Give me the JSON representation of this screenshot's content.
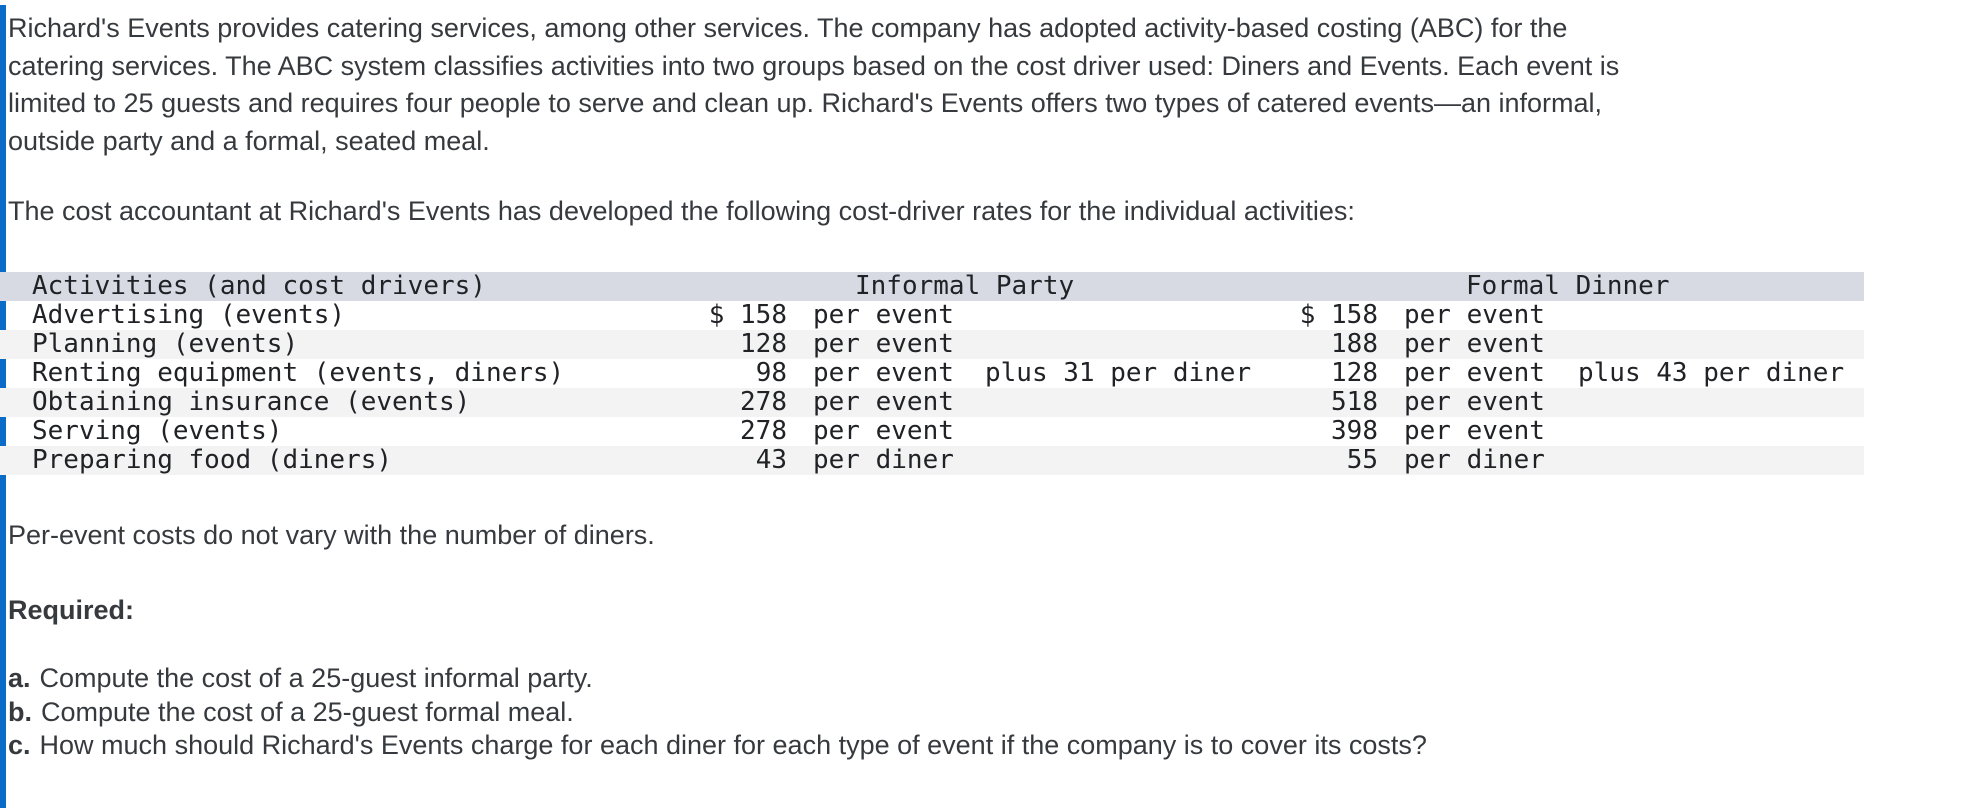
{
  "intro": {
    "lines": [
      "Richard's Events provides catering services, among other services. The company has adopted activity-based costing (ABC) for the",
      "catering services. The ABC system classifies activities into two groups based on the cost driver used: Diners and Events. Each event is",
      "limited to 25 guests and requires four people to serve and clean up. Richard's Events offers two types of catered events—an informal,",
      "outside party and a formal, seated meal."
    ]
  },
  "cost_driver_intro": "The cost accountant at Richard's Events has developed the following cost-driver rates for the individual activities:",
  "table": {
    "headers": {
      "activities": "Activities (and cost drivers)",
      "informal": "Informal Party",
      "formal": "Formal Dinner"
    },
    "rows": [
      {
        "activity": "Advertising (events)",
        "informal_rate": "$ 158",
        "informal_unit": "per event",
        "informal_extra": "",
        "formal_rate": "$ 158",
        "formal_unit": "per event",
        "formal_extra": ""
      },
      {
        "activity": "Planning (events)",
        "informal_rate": "128",
        "informal_unit": "per event",
        "informal_extra": "",
        "formal_rate": "188",
        "formal_unit": "per event",
        "formal_extra": ""
      },
      {
        "activity": "Renting equipment (events, diners)",
        "informal_rate": "98",
        "informal_unit": "per event",
        "informal_extra": "plus 31 per diner",
        "formal_rate": "128",
        "formal_unit": "per event",
        "formal_extra": "plus 43 per diner"
      },
      {
        "activity": "Obtaining insurance (events)",
        "informal_rate": "278",
        "informal_unit": "per event",
        "informal_extra": "",
        "formal_rate": "518",
        "formal_unit": "per event",
        "formal_extra": ""
      },
      {
        "activity": "Serving (events)",
        "informal_rate": "278",
        "informal_unit": "per event",
        "informal_extra": "",
        "formal_rate": "398",
        "formal_unit": "per event",
        "formal_extra": ""
      },
      {
        "activity": "Preparing food (diners)",
        "informal_rate": "43",
        "informal_unit": "per diner",
        "informal_extra": "",
        "formal_rate": "55",
        "formal_unit": "per diner",
        "formal_extra": ""
      }
    ]
  },
  "note": "Per-event costs do not vary with the number of diners.",
  "required_label": "Required:",
  "questions": [
    {
      "label": "a.",
      "text": "Compute the cost of a 25-guest informal party."
    },
    {
      "label": "b.",
      "text": "Compute the cost of a 25-guest formal meal."
    },
    {
      "label": "c.",
      "text": "How much should Richard's Events charge for each diner for each type of event if the company is to cover its costs?"
    }
  ],
  "colors": {
    "accent_bar": "#0b6cc7",
    "table_header_bg": "#d7dae3",
    "table_stripe_bg": "#f3f3f4",
    "body_text": "#363a3e",
    "table_text": "#202226"
  }
}
